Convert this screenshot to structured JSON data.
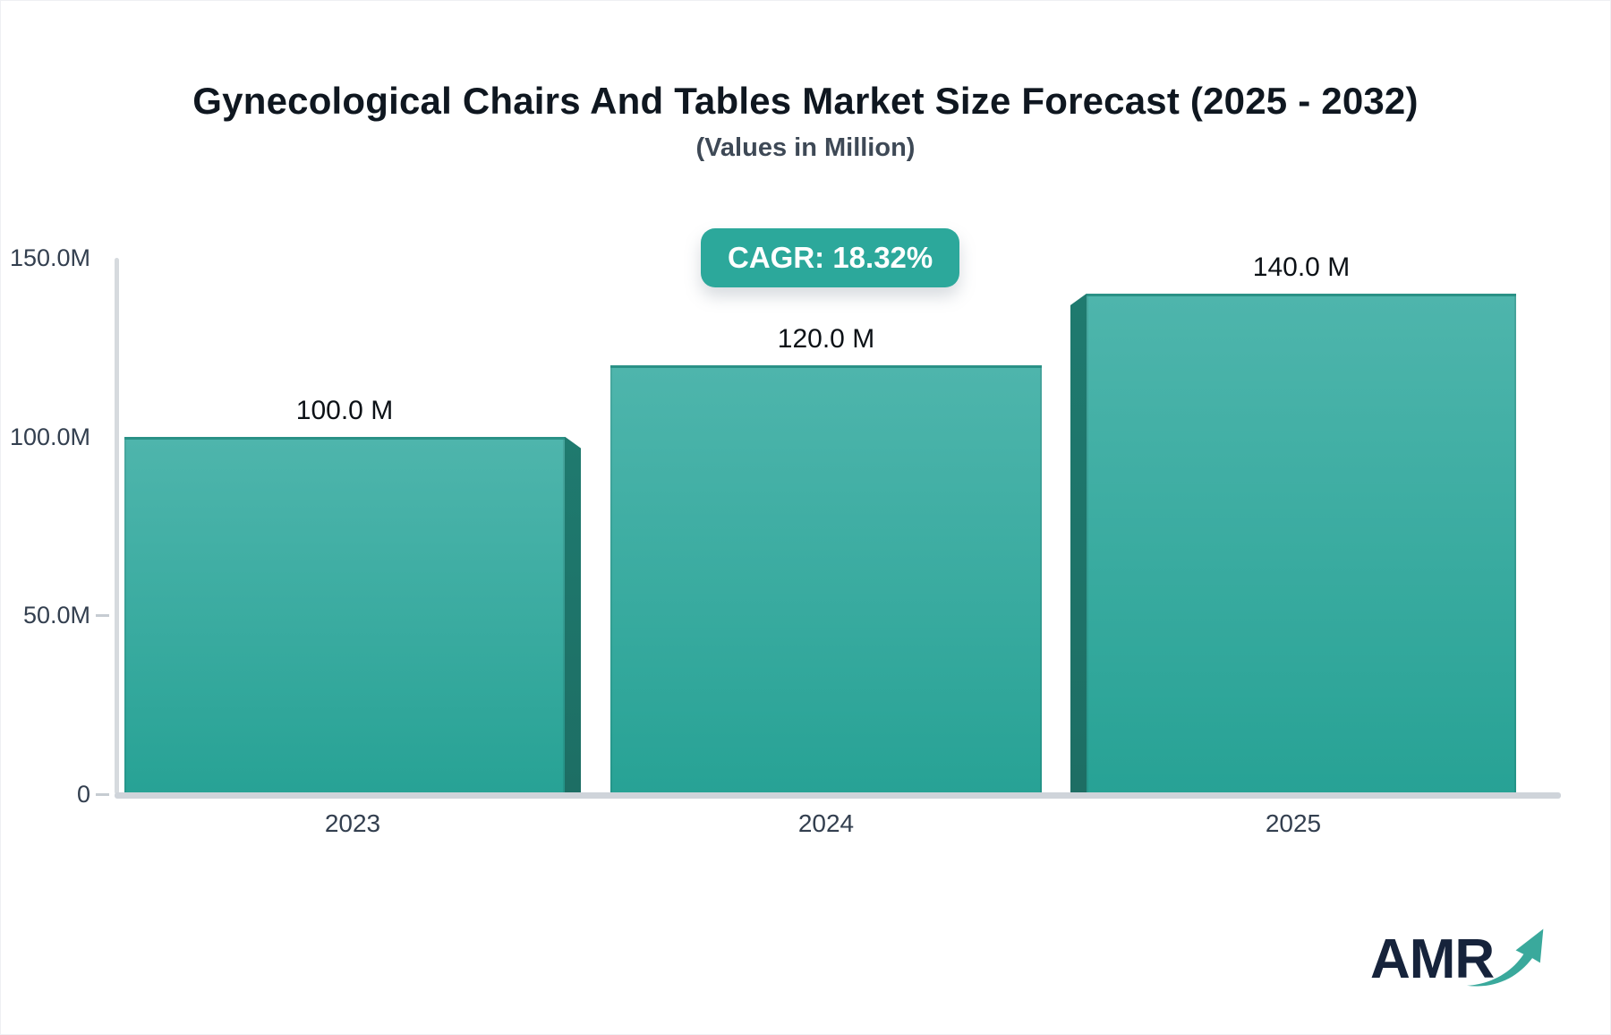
{
  "header": {
    "title": "Gynecological Chairs And Tables Market Size Forecast (2025 - 2032)",
    "subtitle": "(Values in Million)"
  },
  "badge": {
    "label": "CAGR: 18.32%",
    "background": "#2ca89b",
    "text_color": "#ffffff"
  },
  "chart_data": {
    "type": "bar",
    "title": "Gynecological Chairs And Tables Market Size Forecast (2025 - 2032)",
    "subtitle": "(Values in Million)",
    "cagr_label": "CAGR: 18.32%",
    "categories": [
      "2023",
      "2024",
      "2025"
    ],
    "values": [
      100.0,
      120.0,
      140.0
    ],
    "bar_labels": [
      "100.0 M",
      "120.0 M",
      "140.0 M"
    ],
    "ylim": [
      0,
      150
    ],
    "yticks": [
      {
        "value": 150,
        "label": "150.0M"
      },
      {
        "value": 100,
        "label": "100.0M"
      },
      {
        "value": 50,
        "label": "50.0M"
      },
      {
        "value": 0,
        "label": "0"
      }
    ],
    "grid": false,
    "legend": false,
    "bar_color_top": "#4eb5ac",
    "bar_color_bottom": "#27a295",
    "bar_top_edge_color": "#2a9186",
    "bar_side_color": "#1f7a6f",
    "axis_color": "#d6dade"
  },
  "logo": {
    "text": "AMR",
    "text_color": "#16233b",
    "arrow_color": "#3aa99c"
  }
}
